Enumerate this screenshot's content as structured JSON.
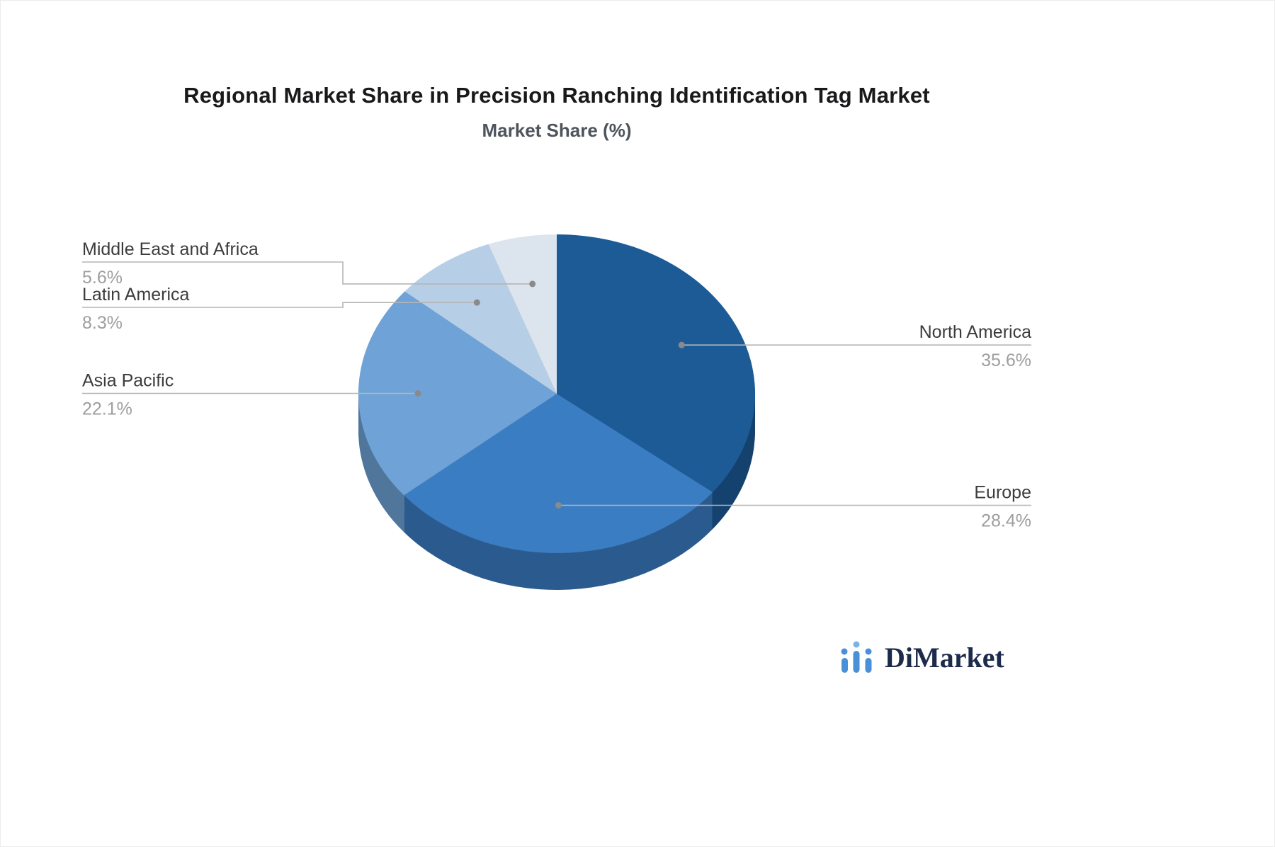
{
  "chart_data": {
    "type": "pie",
    "style": "3d",
    "title": "Regional Market Share in Precision Ranching Identification Tag Market",
    "subtitle": "Market Share (%)",
    "unit": "%",
    "labels": [
      "North America",
      "Europe",
      "Asia Pacific",
      "Latin America",
      "Middle East and Africa"
    ],
    "values": [
      35.6,
      28.4,
      22.1,
      8.3,
      5.6
    ],
    "colors": [
      "#1d5b97",
      "#3b7dc2",
      "#6fa2d6",
      "#b6cfe7",
      "#dce5ee"
    ],
    "start_angle_deg": 0,
    "direction": "clockwise",
    "legend": "none",
    "label_text_color": "#3c3c3c",
    "percent_text_color": "#9e9e9e",
    "leader_line_color": "#b5b5b5",
    "dot_color": "#8a8a8a"
  },
  "branding": {
    "logo_text": "DiMarket",
    "logo_icon": "bar-chart-icon",
    "logo_text_color": "#1c2b4a",
    "logo_icon_color": "#4a90d9"
  }
}
